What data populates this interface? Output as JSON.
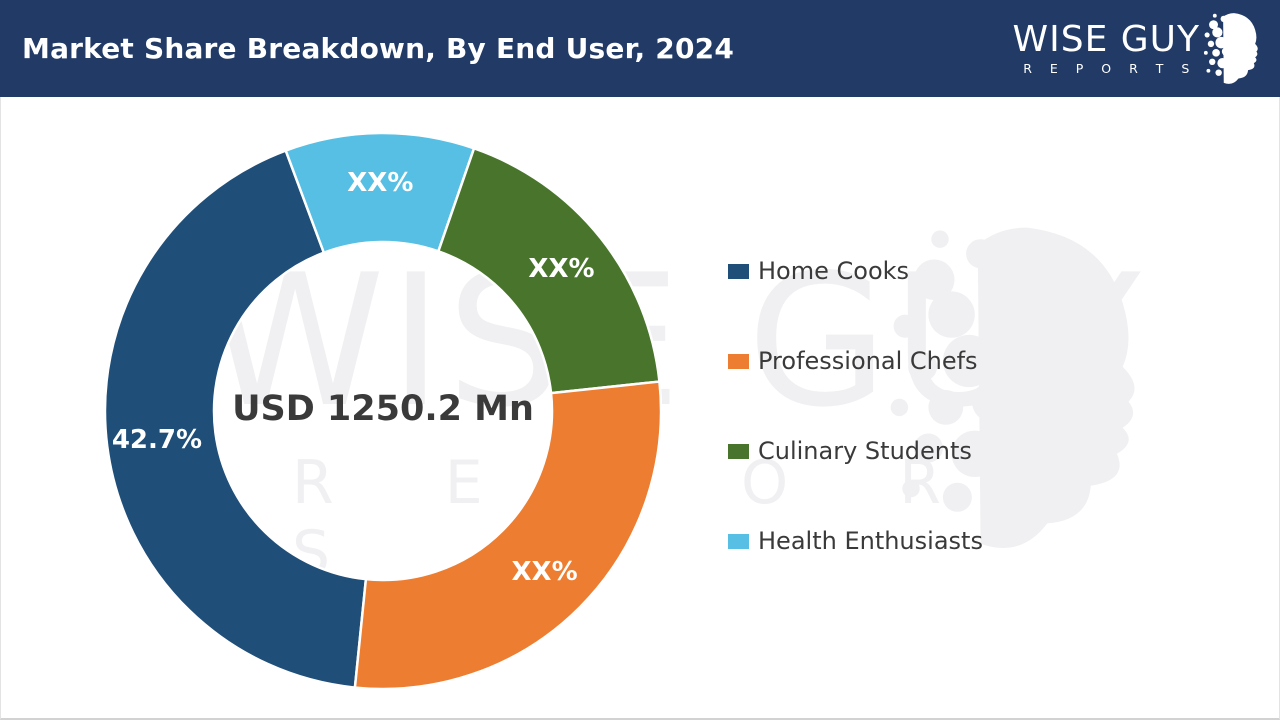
{
  "header": {
    "title": "Market Share Breakdown, By End User, 2024",
    "bg_color": "#213A66",
    "logo": {
      "primary": "WISE GUY",
      "secondary": "R E P O R T S"
    }
  },
  "watermark": {
    "primary": "WISE GUY",
    "secondary": "R E P O R T S"
  },
  "chart_data": {
    "type": "donut",
    "title": "Market Share Breakdown, By End User, 2024",
    "center_label": "USD 1250.2 Mn",
    "start_angle_deg": 185.8,
    "outer_radius": 278,
    "inner_radius": 169,
    "label_radius": 228,
    "gap_stroke_color": "#ffffff",
    "center_text_color": "#3A3A3A",
    "legend_position": "right",
    "draw_order": [
      0,
      3,
      2,
      1
    ],
    "segments": [
      {
        "name": "Home Cooks",
        "value": 42.7,
        "label": "42.7%",
        "color": "#1F4E79"
      },
      {
        "name": "Professional Chefs",
        "value": 28.3,
        "label": "XX%",
        "color": "#ED7D31"
      },
      {
        "name": "Culinary Students",
        "value": 18.0,
        "label": "XX%",
        "color": "#48752B"
      },
      {
        "name": "Health Enthusiasts",
        "value": 11.0,
        "label": "XX%",
        "color": "#56BFE3"
      }
    ]
  }
}
